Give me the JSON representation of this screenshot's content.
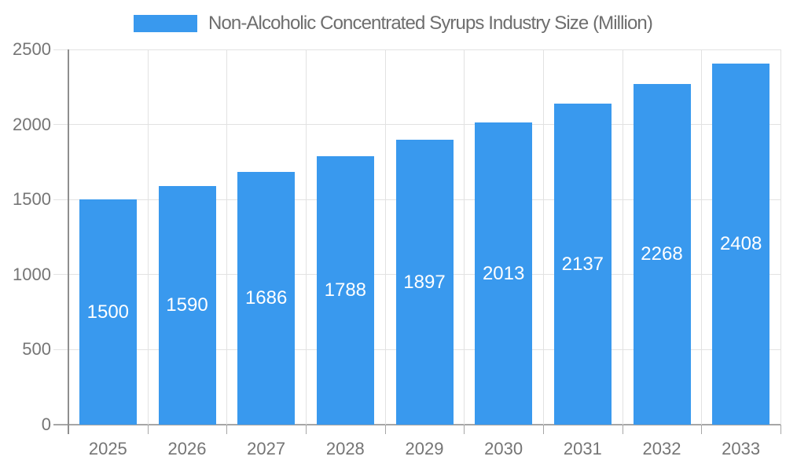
{
  "legend": {
    "label": "Non-Alcoholic Concentrated Syrups Industry Size (Million)"
  },
  "chart_data": {
    "type": "bar",
    "title": "Non-Alcoholic Concentrated Syrups Industry Size (Million)",
    "categories": [
      "2025",
      "2026",
      "2027",
      "2028",
      "2029",
      "2030",
      "2031",
      "2032",
      "2033"
    ],
    "values": [
      1500,
      1590,
      1686,
      1788,
      1897,
      2013,
      2137,
      2268,
      2408
    ],
    "xlabel": "",
    "ylabel": "",
    "ylim": [
      0,
      2500
    ],
    "yticks": [
      0,
      500,
      1000,
      1500,
      2000,
      2500
    ],
    "grid": true,
    "legend_position": "top-center",
    "value_labels": "inside-center",
    "colors": {
      "bar": "#3999EE",
      "bar_label_text": "#FFFFFF",
      "axis_text": "#757575",
      "legend_text": "#6E6E6E",
      "gridline": "#E2E2E2",
      "axis_line": "#8F8F8F",
      "baseline": "#A6A6A6",
      "background": "#FFFFFF"
    }
  }
}
